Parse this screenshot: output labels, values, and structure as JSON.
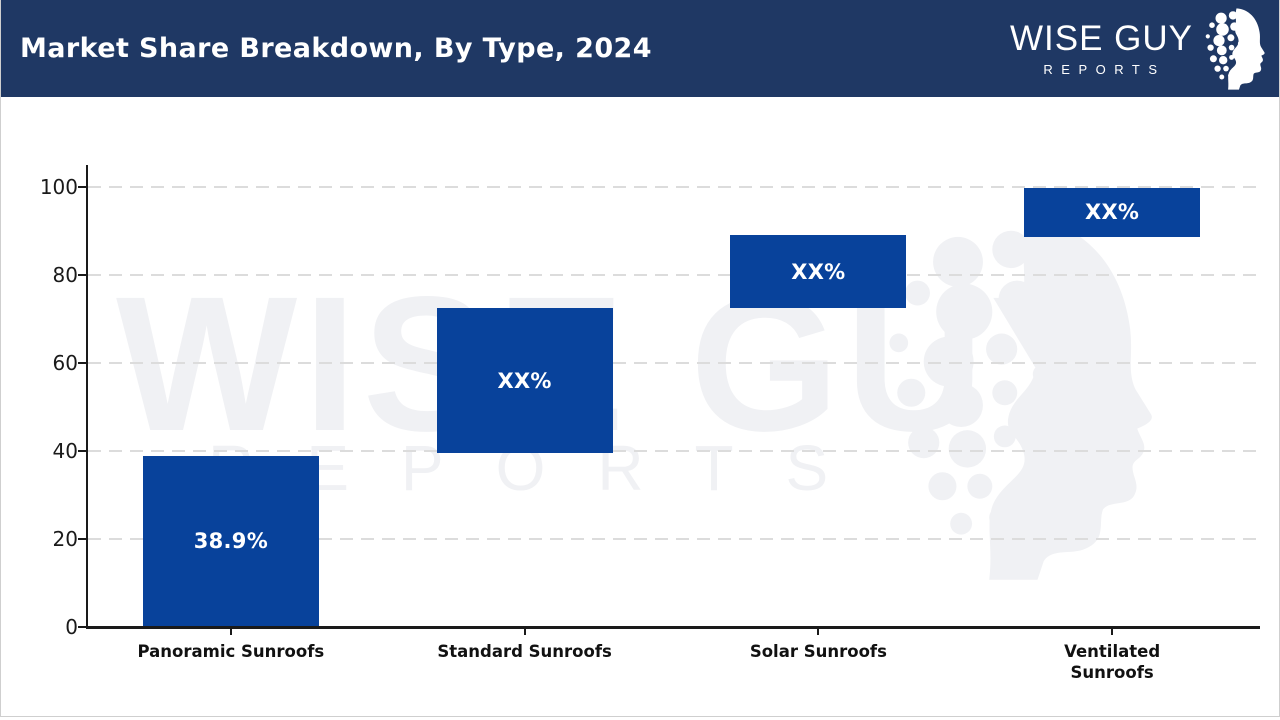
{
  "header": {
    "title": "Market Share Breakdown, By Type, 2024",
    "background_color": "#1f3864",
    "logo": {
      "name": "WISE GUY",
      "subtitle": "REPORTS"
    }
  },
  "watermark": {
    "name": "WISE GUY",
    "subtitle": "REPORTS"
  },
  "chart_data": {
    "type": "bar",
    "subtype": "waterfall",
    "title": "Market Share Breakdown, By Type, 2024",
    "categories": [
      "Panoramic Sunroofs",
      "Standard Sunroofs",
      "Solar Sunroofs",
      "Ventilated Sunroofs"
    ],
    "category_label_lines": [
      [
        "Panoramic Sunroofs"
      ],
      [
        "Standard Sunroofs"
      ],
      [
        "Solar Sunroofs"
      ],
      [
        "Ventilated",
        "Sunroofs"
      ]
    ],
    "segments": [
      {
        "category": "Panoramic Sunroofs",
        "start": 0,
        "end": 38.9,
        "label": "38.9%"
      },
      {
        "category": "Standard Sunroofs",
        "start": 39.4,
        "end": 72.4,
        "label": "XX%"
      },
      {
        "category": "Solar Sunroofs",
        "start": 72.4,
        "end": 89.0,
        "label": "XX%"
      },
      {
        "category": "Ventilated Sunroofs",
        "start": 88.6,
        "end": 99.8,
        "label": "XX%"
      }
    ],
    "xlabel": "",
    "ylabel": "",
    "ylim": [
      0,
      100
    ],
    "yticks": [
      0,
      20,
      40,
      60,
      80,
      100
    ],
    "grid": {
      "axis": "y",
      "style": "dashed",
      "color": "#dcdcdc"
    },
    "legend": null,
    "bar_color": "#08429b",
    "bar_label_color": "#ffffff",
    "axis_color": "#1a1a1a"
  }
}
